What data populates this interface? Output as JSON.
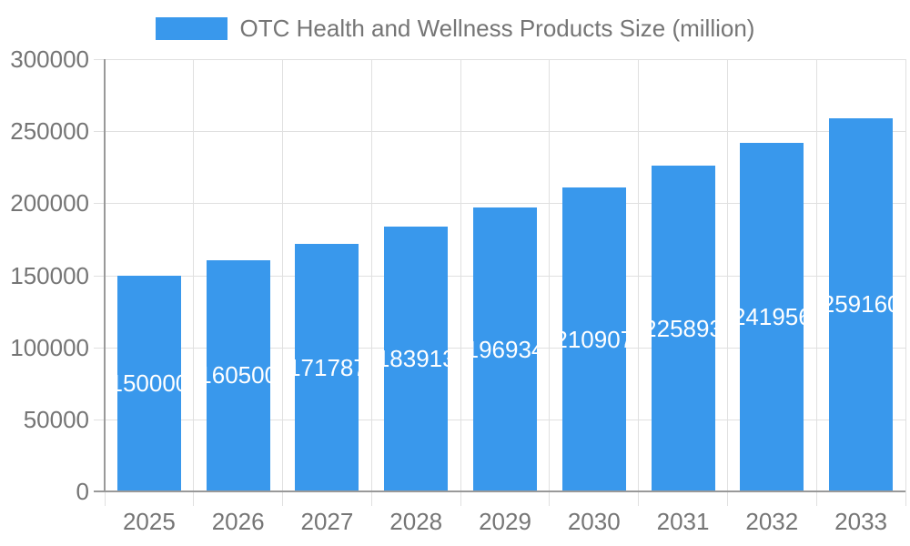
{
  "legend": {
    "label": "OTC Health and Wellness Products Size (million)"
  },
  "chart_data": {
    "type": "bar",
    "title": "OTC Health and Wellness Products Size (million)",
    "xlabel": "",
    "ylabel": "",
    "categories": [
      "2025",
      "2026",
      "2027",
      "2028",
      "2029",
      "2030",
      "2031",
      "2032",
      "2033"
    ],
    "values": [
      150000,
      160500,
      171787,
      183913,
      196934,
      210907,
      225893,
      241956,
      259160
    ],
    "bar_labels": [
      "150000",
      "160500",
      "171787",
      "183913",
      "196934",
      "210907",
      "225893",
      "241956",
      "259160"
    ],
    "series": [
      {
        "name": "OTC Health and Wellness Products Size (million)",
        "values": [
          150000,
          160500,
          171787,
          183913,
          196934,
          210907,
          225893,
          241956,
          259160
        ]
      }
    ],
    "ylim": [
      0,
      300000
    ],
    "ytick_step": 50000,
    "ytick_labels": [
      "300000",
      "250000",
      "200000",
      "150000",
      "100000",
      "50000",
      "0"
    ],
    "grid": true,
    "legend_position": "top-center",
    "colors": {
      "bar": "#3998ec",
      "bar_label_text": "#ffffff",
      "axis_text": "#757575",
      "axis_line": "#999999",
      "grid_line": "#e0e0e0",
      "background": "#ffffff"
    }
  }
}
